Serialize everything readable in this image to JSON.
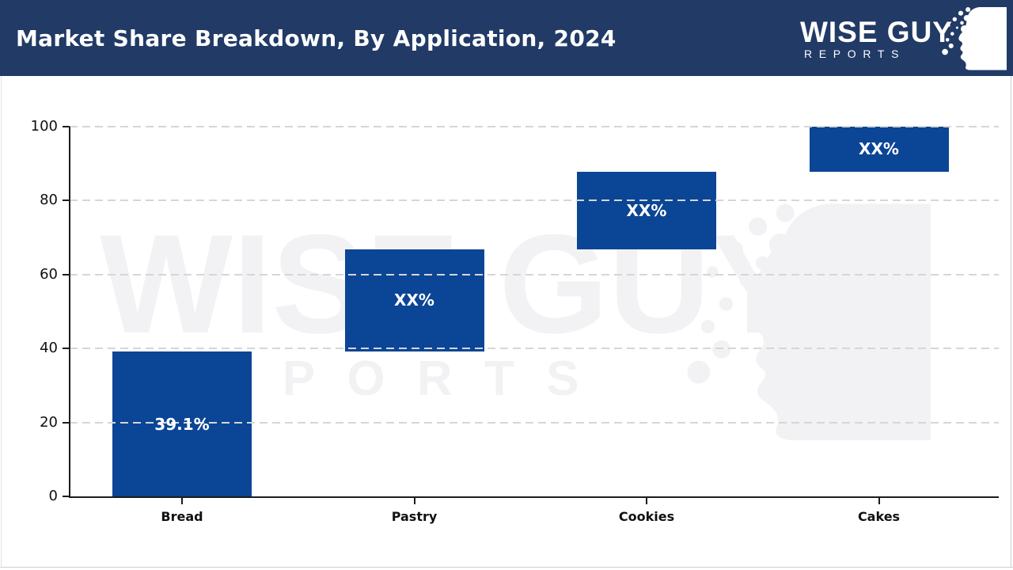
{
  "header": {
    "title": "Market Share Breakdown, By Application, 2024",
    "bg_color": "#213a66",
    "logo": {
      "line1": "WISE GUY",
      "line2": "REPORTS"
    }
  },
  "watermark": {
    "line1": "WISE GUY",
    "line2": "REPORTS",
    "color": "#f2f2f4"
  },
  "chart_data": {
    "type": "bar",
    "subtype": "waterfall",
    "title": "Market Share Breakdown, By Application, 2024",
    "categories": [
      "Bread",
      "Pastry",
      "Cookies",
      "Cakes"
    ],
    "series": [
      {
        "name": "Market Share",
        "segments": [
          {
            "category": "Bread",
            "start": 0,
            "end": 39.1,
            "label": "39.1%"
          },
          {
            "category": "Pastry",
            "start": 39.1,
            "end": 66.9,
            "label": "XX%"
          },
          {
            "category": "Cookies",
            "start": 66.9,
            "end": 87.8,
            "label": "XX%"
          },
          {
            "category": "Cakes",
            "start": 87.8,
            "end": 100,
            "label": "XX%"
          }
        ]
      }
    ],
    "ylim": [
      0,
      100
    ],
    "yticks": [
      0,
      20,
      40,
      60,
      80,
      100
    ],
    "xlabel": "",
    "ylabel": "",
    "grid": "horizontal-dashed",
    "legend": "none",
    "bar_color": "#0b4596",
    "value_label_color": "#ffffff",
    "axis_color": "#1c1c1c",
    "grid_color": "#d6d6d6"
  }
}
